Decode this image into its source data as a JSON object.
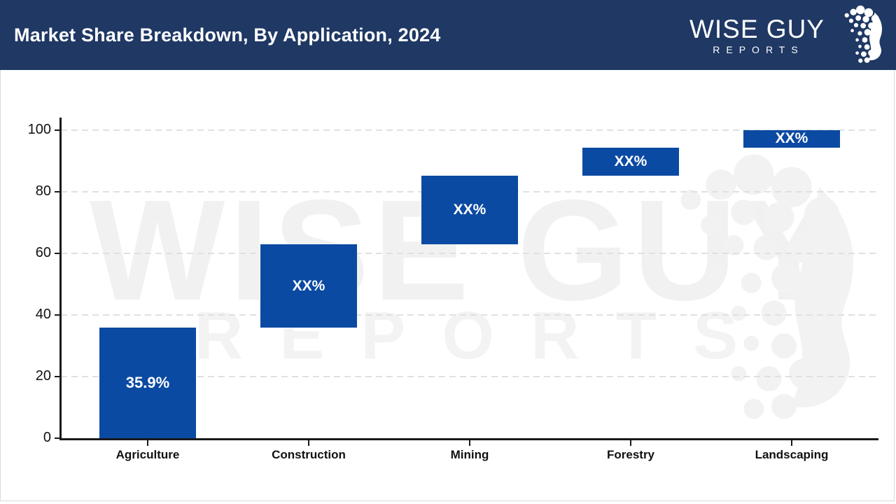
{
  "header": {
    "title": "Market Share Breakdown, By Application, 2024",
    "logo": {
      "line1": "WISE GUY",
      "line2": "REPORTS"
    }
  },
  "watermark": {
    "line1": "WISE GUY",
    "line2": "REPORTS"
  },
  "colors": {
    "header_bg": "#1f3864",
    "bar": "#0b4aa2",
    "grid": "#e0e0e0",
    "axis": "#1a1a1a",
    "bar_label": "#ffffff",
    "frame": "#d9d9d9",
    "watermark": "#f1f1f1"
  },
  "chart_data": {
    "type": "bar",
    "subtype": "floating-waterfall",
    "title": "Market Share Breakdown, By Application, 2024",
    "categories": [
      "Agriculture",
      "Construction",
      "Mining",
      "Forestry",
      "Landscaping"
    ],
    "bars": [
      {
        "category": "Agriculture",
        "start": 0,
        "end": 35.9,
        "value": 35.9,
        "label": "35.9%"
      },
      {
        "category": "Construction",
        "start": 35.9,
        "end": 62.9,
        "value": 27.0,
        "label": "XX%"
      },
      {
        "category": "Mining",
        "start": 62.9,
        "end": 85.3,
        "value": 22.4,
        "label": "XX%"
      },
      {
        "category": "Forestry",
        "start": 85.3,
        "end": 94.4,
        "value": 9.1,
        "label": "XX%"
      },
      {
        "category": "Landscaping",
        "start": 94.4,
        "end": 100,
        "value": 5.6,
        "label": "XX%"
      }
    ],
    "xlabel": "",
    "ylabel": "",
    "ylim": [
      0,
      104
    ],
    "yticks": [
      0,
      20,
      40,
      60,
      80,
      100
    ],
    "grid": true,
    "legend": false
  }
}
